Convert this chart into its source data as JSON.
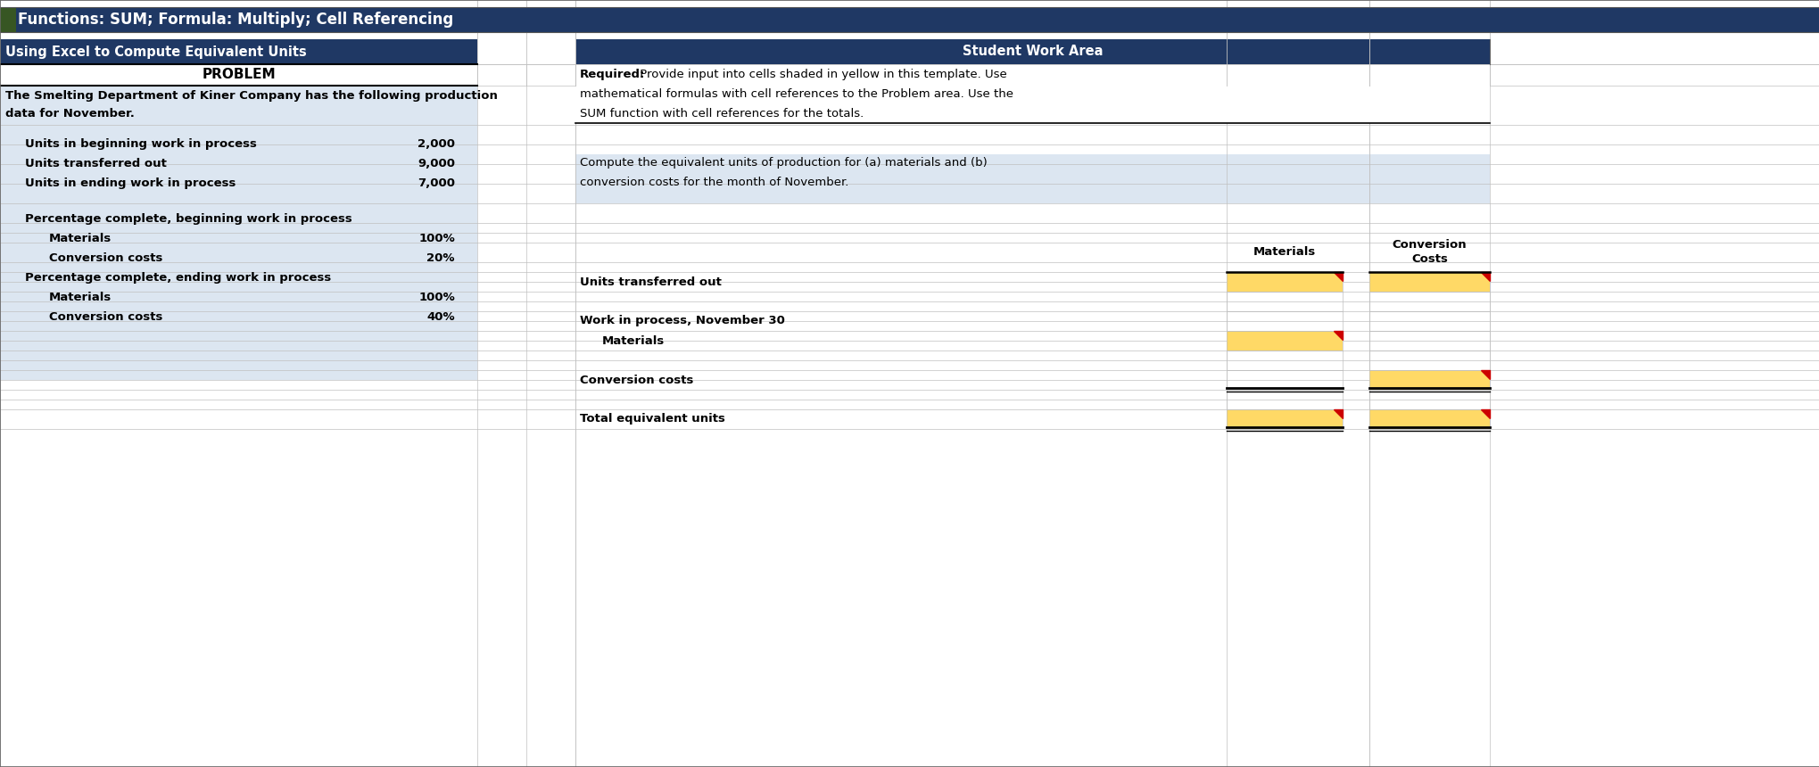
{
  "title_bar_text": "Functions: SUM; Formula: Multiply; Cell Referencing",
  "title_bar_bg": "#1f3864",
  "title_bar_text_color": "#ffffff",
  "title_bar_fontsize": 12,
  "green_tab_color": "#375623",
  "header_bg": "#1f3864",
  "header_text_color": "#ffffff",
  "header_fontsize": 10.5,
  "problem_header": "PROBLEM",
  "student_work_area": "Student Work Area",
  "left_section_bg": "#dce6f1",
  "compute_section_bg": "#dce6f1",
  "yellow_cell_bg": "#ffd966",
  "white_bg": "#ffffff",
  "grid_color": "#c0c0c0",
  "dark_grid_color": "#888888",
  "problem_text1": "The Smelting Department of Kiner Company has the following production",
  "problem_text2": "data for November.",
  "left_items": [
    {
      "label": "Units in beginning work in process",
      "value": "2,000",
      "indent": 1
    },
    {
      "label": "Units transferred out",
      "value": "9,000",
      "indent": 1
    },
    {
      "label": "Units in ending work in process",
      "value": "7,000",
      "indent": 1
    },
    {
      "label": "",
      "value": "",
      "indent": 0
    },
    {
      "label": "Percentage complete, beginning work in process",
      "value": "",
      "indent": 1
    },
    {
      "label": "Materials",
      "value": "100%",
      "indent": 2
    },
    {
      "label": "Conversion costs",
      "value": "20%",
      "indent": 2
    },
    {
      "label": "Percentage complete, ending work in process",
      "value": "",
      "indent": 1
    },
    {
      "label": "Materials",
      "value": "100%",
      "indent": 2
    },
    {
      "label": "Conversion costs",
      "value": "40%",
      "indent": 2
    }
  ],
  "required_bold": "Required:",
  "required_rest_line1": " Provide input into cells shaded in yellow in this template. Use",
  "required_line2": "mathematical formulas with cell references to the Problem area. Use the",
  "required_line3": "SUM function with cell references for the totals.",
  "compute_line1": "Compute the equivalent units of production for (a) materials and (b)",
  "compute_line2": "conversion costs for the month of November.",
  "col_header_materials": "Materials",
  "col_header_conversion": "Conversion\nCosts",
  "right_rows": [
    {
      "label": "Units transferred out",
      "indent": 0,
      "mat_yellow": true,
      "conv_yellow": true,
      "top_border": true,
      "bot_border": false
    },
    {
      "label": "",
      "indent": 0,
      "mat_yellow": false,
      "conv_yellow": false,
      "top_border": false,
      "bot_border": false
    },
    {
      "label": "Work in process, November 30",
      "indent": 0,
      "mat_yellow": false,
      "conv_yellow": false,
      "top_border": false,
      "bot_border": false
    },
    {
      "label": "Materials",
      "indent": 1,
      "mat_yellow": true,
      "conv_yellow": false,
      "top_border": false,
      "bot_border": false
    },
    {
      "label": "",
      "indent": 0,
      "mat_yellow": false,
      "conv_yellow": false,
      "top_border": false,
      "bot_border": false
    },
    {
      "label": "Conversion costs",
      "indent": 0,
      "mat_yellow": false,
      "conv_yellow": true,
      "top_border": false,
      "bot_border": true
    },
    {
      "label": "",
      "indent": 0,
      "mat_yellow": false,
      "conv_yellow": false,
      "top_border": false,
      "bot_border": false
    },
    {
      "label": "Total equivalent units",
      "indent": 0,
      "mat_yellow": true,
      "conv_yellow": true,
      "top_border": false,
      "bot_border": true
    }
  ],
  "fig_width": 20.4,
  "fig_height": 8.6
}
